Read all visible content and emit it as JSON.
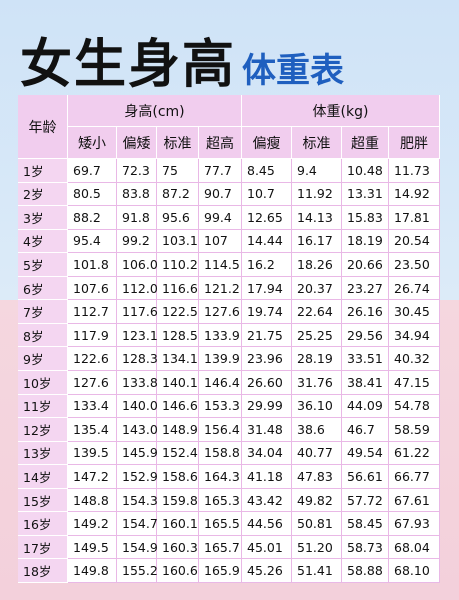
{
  "header": {
    "title_main": "女生身高",
    "title_accent": "体重表"
  },
  "table": {
    "corner": "年龄",
    "groups": [
      "身高(cm)",
      "体重(kg)"
    ],
    "subheaders": [
      "矮小",
      "偏矮",
      "标准",
      "超高",
      "偏瘦",
      "标准",
      "超重",
      "肥胖"
    ],
    "rows": [
      [
        "1岁",
        "69.7",
        "72.3",
        "75",
        "77.7",
        "8.45",
        "9.4",
        "10.48",
        "11.73"
      ],
      [
        "2岁",
        "80.5",
        "83.8",
        "87.2",
        "90.7",
        "10.7",
        "11.92",
        "13.31",
        "14.92"
      ],
      [
        "3岁",
        "88.2",
        "91.8",
        "95.6",
        "99.4",
        "12.65",
        "14.13",
        "15.83",
        "17.81"
      ],
      [
        "4岁",
        "95.4",
        "99.2",
        "103.1",
        "107",
        "14.44",
        "16.17",
        "18.19",
        "20.54"
      ],
      [
        "5岁",
        "101.8",
        "106.0",
        "110.2",
        "114.5",
        "16.2",
        "18.26",
        "20.66",
        "23.50"
      ],
      [
        "6岁",
        "107.6",
        "112.0",
        "116.6",
        "121.2",
        "17.94",
        "20.37",
        "23.27",
        "26.74"
      ],
      [
        "7岁",
        "112.7",
        "117.6",
        "122.5",
        "127.6",
        "19.74",
        "22.64",
        "26.16",
        "30.45"
      ],
      [
        "8岁",
        "117.9",
        "123.1",
        "128.5",
        "133.9",
        "21.75",
        "25.25",
        "29.56",
        "34.94"
      ],
      [
        "9岁",
        "122.6",
        "128.3",
        "134.1",
        "139.9",
        "23.96",
        "28.19",
        "33.51",
        "40.32"
      ],
      [
        "10岁",
        "127.6",
        "133.8",
        "140.1",
        "146.4",
        "26.60",
        "31.76",
        "38.41",
        "47.15"
      ],
      [
        "11岁",
        "133.4",
        "140.0",
        "146.6",
        "153.3",
        "29.99",
        "36.10",
        "44.09",
        "54.78"
      ],
      [
        "12岁",
        "135.4",
        "143.0",
        "148.9",
        "156.4",
        "31.48",
        "38.6",
        "46.7",
        "58.59"
      ],
      [
        "13岁",
        "139.5",
        "145.9",
        "152.4",
        "158.8",
        "34.04",
        "40.77",
        "49.54",
        "61.22"
      ],
      [
        "14岁",
        "147.2",
        "152.9",
        "158.6",
        "164.3",
        "41.18",
        "47.83",
        "56.61",
        "66.77"
      ],
      [
        "15岁",
        "148.8",
        "154.3",
        "159.8",
        "165.3",
        "43.42",
        "49.82",
        "57.72",
        "67.61"
      ],
      [
        "16岁",
        "149.2",
        "154.7",
        "160.1",
        "165.5",
        "44.56",
        "50.81",
        "58.45",
        "67.93"
      ],
      [
        "17岁",
        "149.5",
        "154.9",
        "160.3",
        "165.7",
        "45.01",
        "51.20",
        "58.73",
        "68.04"
      ],
      [
        "18岁",
        "149.8",
        "155.2",
        "160.6",
        "165.9",
        "45.26",
        "51.41",
        "58.88",
        "68.10"
      ]
    ]
  }
}
